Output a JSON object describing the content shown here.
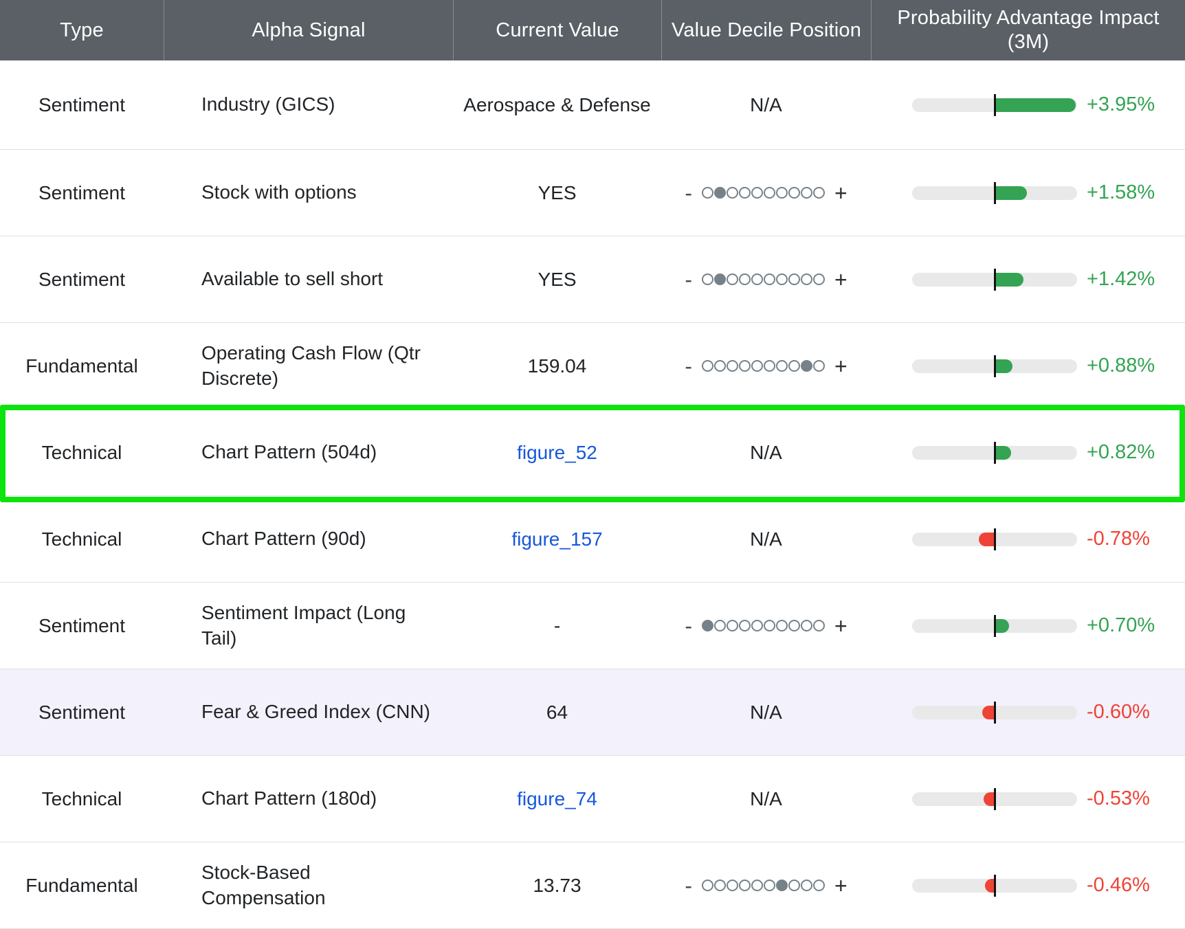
{
  "header": {
    "columns": [
      "Type",
      "Alpha Signal",
      "Current Value",
      "Value Decile Position",
      "Probability Advantage Impact (3M)"
    ]
  },
  "na_label": "N/A",
  "decile_scale": {
    "minus": "-",
    "plus": "+",
    "count": 10
  },
  "rows": [
    {
      "type": "Sentiment",
      "signal": "Industry (GICS)",
      "value": "Aerospace & Defense",
      "value_kind": "text",
      "decile": null,
      "impact_label": "+3.95%",
      "impact_value": 3.95,
      "highlight": false,
      "shaded": false
    },
    {
      "type": "Sentiment",
      "signal": "Stock with options",
      "value": "YES",
      "value_kind": "text",
      "decile": 2,
      "impact_label": "+1.58%",
      "impact_value": 1.58,
      "highlight": false,
      "shaded": false
    },
    {
      "type": "Sentiment",
      "signal": "Available to sell short",
      "value": "YES",
      "value_kind": "text",
      "decile": 2,
      "impact_label": "+1.42%",
      "impact_value": 1.42,
      "highlight": false,
      "shaded": false
    },
    {
      "type": "Fundamental",
      "signal": "Operating Cash Flow (Qtr Discrete)",
      "value": "159.04",
      "value_kind": "text",
      "decile": 9,
      "impact_label": "+0.88%",
      "impact_value": 0.88,
      "highlight": false,
      "shaded": false
    },
    {
      "type": "Technical",
      "signal": "Chart Pattern (504d)",
      "value": "figure_52",
      "value_kind": "link",
      "decile": null,
      "impact_label": "+0.82%",
      "impact_value": 0.82,
      "highlight": true,
      "shaded": false
    },
    {
      "type": "Technical",
      "signal": "Chart Pattern (90d)",
      "value": "figure_157",
      "value_kind": "link",
      "decile": null,
      "impact_label": "-0.78%",
      "impact_value": -0.78,
      "highlight": false,
      "shaded": false
    },
    {
      "type": "Sentiment",
      "signal": "Sentiment Impact (Long Tail)",
      "value": "-",
      "value_kind": "text",
      "decile": 1,
      "impact_label": "+0.70%",
      "impact_value": 0.7,
      "highlight": false,
      "shaded": false
    },
    {
      "type": "Sentiment",
      "signal": "Fear & Greed Index (CNN)",
      "value": "64",
      "value_kind": "text",
      "decile": null,
      "impact_label": "-0.60%",
      "impact_value": -0.6,
      "highlight": false,
      "shaded": true
    },
    {
      "type": "Technical",
      "signal": "Chart Pattern (180d)",
      "value": "figure_74",
      "value_kind": "link",
      "decile": null,
      "impact_label": "-0.53%",
      "impact_value": -0.53,
      "highlight": false,
      "shaded": false
    },
    {
      "type": "Fundamental",
      "signal": "Stock-Based Compensation",
      "value": "13.73",
      "value_kind": "text",
      "decile": 7,
      "impact_label": "-0.46%",
      "impact_value": -0.46,
      "highlight": false,
      "shaded": false
    }
  ],
  "colors": {
    "positive": "#34a353",
    "negative": "#ee4337",
    "link_blue": "#1657dd",
    "highlight_border": "#0de30d",
    "header_bg": "#5a6066",
    "shaded_row_bg": "#f3f1fb",
    "track_gray": "#e9e9e9",
    "dot_gray": "#75828a"
  }
}
